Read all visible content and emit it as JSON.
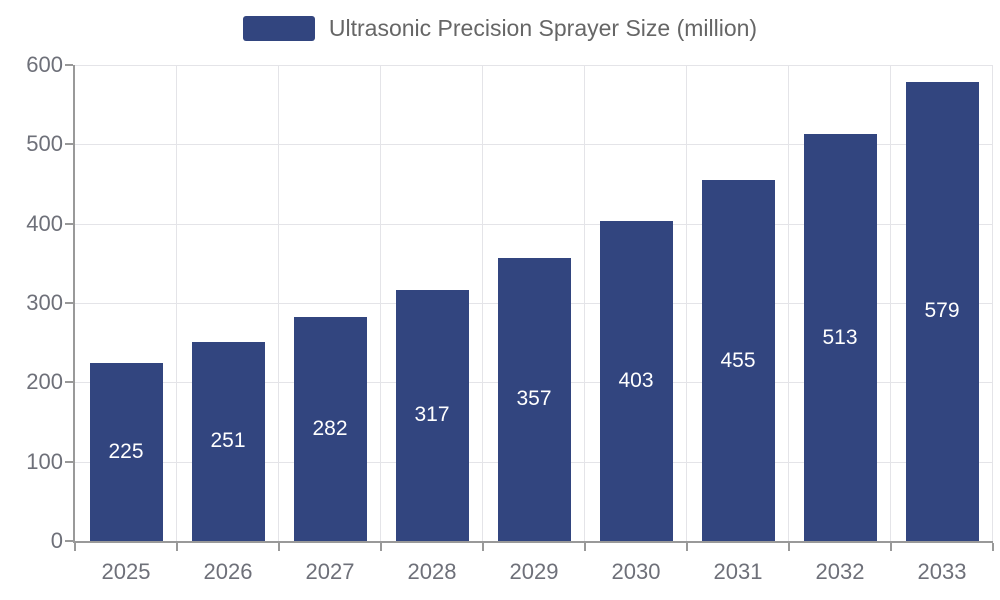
{
  "legend": {
    "label": "Ultrasonic Precision Sprayer Size (million)"
  },
  "colors": {
    "bar": "#32457F",
    "axis": "#999999",
    "grid": "#E4E4E8",
    "tick_label": "#6E7079",
    "legend_text": "#666666",
    "value_label": "#FFFFFF",
    "background": "#FFFFFF"
  },
  "chart_data": {
    "type": "bar",
    "title": "",
    "xlabel": "",
    "ylabel": "",
    "series_name": "Ultrasonic Precision Sprayer Size (million)",
    "categories": [
      "2025",
      "2026",
      "2027",
      "2028",
      "2029",
      "2030",
      "2031",
      "2032",
      "2033"
    ],
    "values": [
      225,
      251,
      282,
      317,
      357,
      403,
      455,
      513,
      579
    ],
    "value_labels": [
      "225",
      "251",
      "282",
      "317",
      "357",
      "403",
      "455",
      "513",
      "579"
    ],
    "ylim": [
      0,
      600
    ],
    "ytick_step": 100,
    "ytick_labels": [
      "0",
      "100",
      "200",
      "300",
      "400",
      "500",
      "600"
    ],
    "grid": true,
    "legend_position": "top",
    "value_label_position": "inside-center"
  }
}
